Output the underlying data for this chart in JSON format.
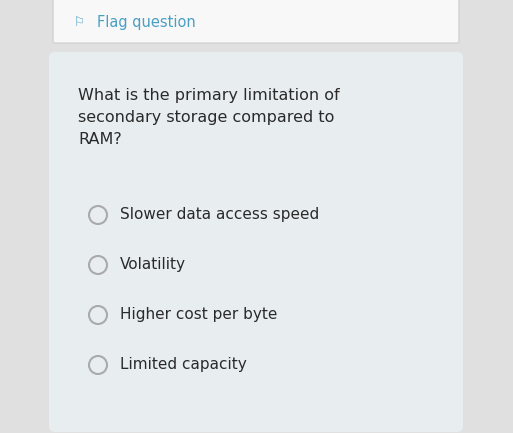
{
  "flag_text": "Flag question",
  "flag_color": "#4a9fc4",
  "question_line1": "What is the primary limitation of",
  "question_line2": "secondary storage compared to",
  "question_line3": "RAM?",
  "question_color": "#2a2a2a",
  "question_fontsize": 11.5,
  "options": [
    "Slower data access speed",
    "Volatility",
    "Higher cost per byte",
    "Limited capacity"
  ],
  "option_fontsize": 11.0,
  "option_color": "#2a2a2a",
  "card_bg": "#e8eef0",
  "page_bg": "#e0e0e0",
  "radio_edge_color": "#aaaaaa",
  "top_bar_bg": "#f8f8f8",
  "top_bar_border": "#cccccc",
  "fig_width": 5.13,
  "fig_height": 4.33,
  "dpi": 100
}
